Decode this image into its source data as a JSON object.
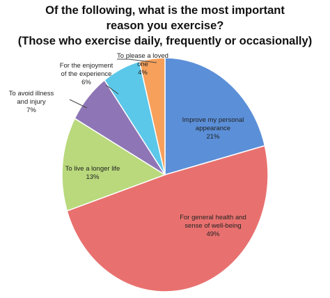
{
  "chart_data": {
    "type": "pie",
    "title": "Of the following, what is the most important reason you exercise?",
    "subtitle": "(Those who exercise daily, frequently or occasionally)",
    "categories": [
      "Improve my personal appearance",
      "For general health and sense of well-being",
      "To live a longer life",
      "To avoid illness and injury",
      "For the enjoyment of the experience",
      "To please a loved one"
    ],
    "values": [
      21,
      49,
      13,
      7,
      6,
      4
    ],
    "value_labels": [
      "21%",
      "49%",
      "13%",
      "7%",
      "6%",
      "4%"
    ],
    "colors": [
      "#5b8fd8",
      "#e8716f",
      "#b9d97c",
      "#8e76b6",
      "#5bc7e9",
      "#f6a05b"
    ]
  }
}
